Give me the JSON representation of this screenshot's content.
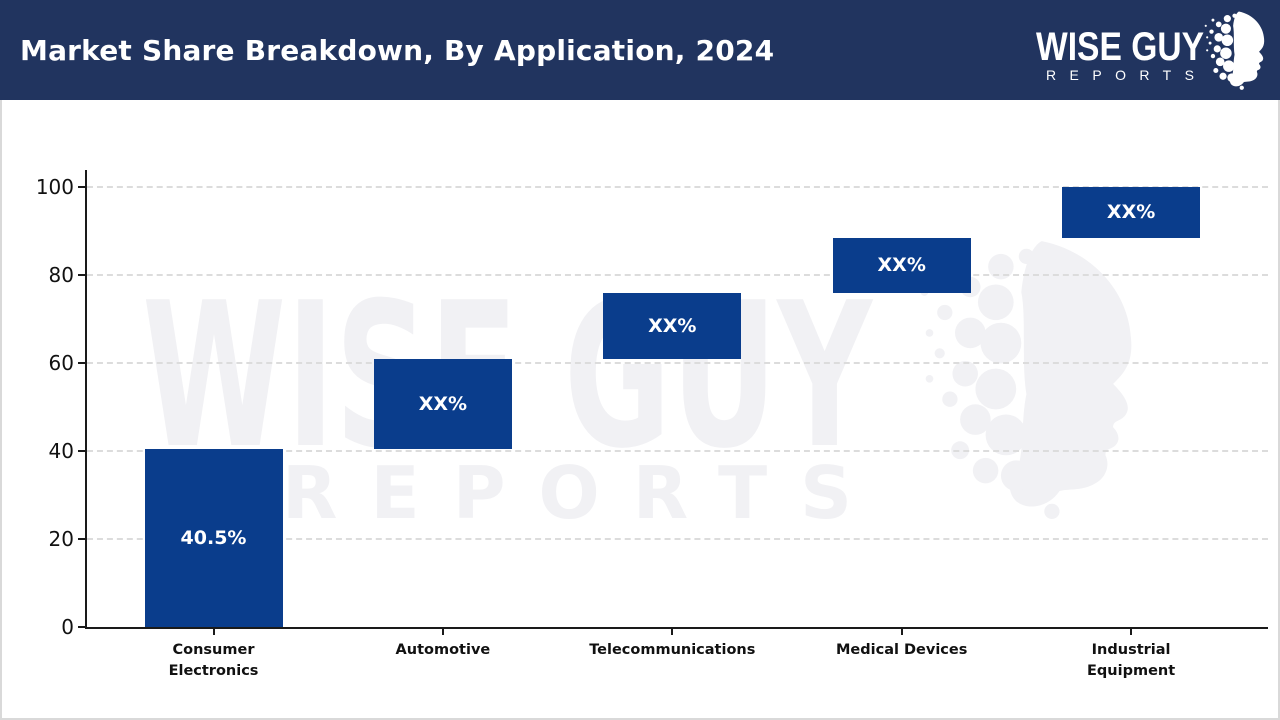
{
  "header": {
    "title": "Market Share Breakdown, By Application, 2024",
    "logo": {
      "wordmark": "WISE GUY",
      "subtext": "REPORTS"
    }
  },
  "watermark": {
    "line1": "WISE GUY",
    "line2": "REPORTS"
  },
  "chart_data": {
    "type": "bar",
    "subtype": "waterfall",
    "title": "Market Share Breakdown, By Application, 2024",
    "categories": [
      "Consumer Electronics",
      "Automotive",
      "Telecommunications",
      "Medical Devices",
      "Industrial Equipment"
    ],
    "segments": [
      {
        "category": "Consumer Electronics",
        "tick_label": "Consumer\nElectronics",
        "start": 0,
        "end": 40.5,
        "label": "40.5%"
      },
      {
        "category": "Automotive",
        "tick_label": "Automotive",
        "start": 40.5,
        "end": 61,
        "label": "XX%"
      },
      {
        "category": "Telecommunications",
        "tick_label": "Telecommunications",
        "start": 61,
        "end": 76,
        "label": "XX%"
      },
      {
        "category": "Medical Devices",
        "tick_label": "Medical Devices",
        "start": 76,
        "end": 88.5,
        "label": "XX%"
      },
      {
        "category": "Industrial Equipment",
        "tick_label": "Industrial\nEquipment",
        "start": 88.5,
        "end": 100,
        "label": "XX%"
      }
    ],
    "yticks": [
      0,
      20,
      40,
      60,
      80,
      100
    ],
    "ylim": [
      0,
      104
    ],
    "xlabel": "",
    "ylabel": "",
    "grid": "horizontal-dashed",
    "legend": "none",
    "colors": {
      "bar": "#0a3d8c",
      "bar_label": "#ffffff",
      "grid": "#dcdcdc",
      "axis": "#1a1a1a",
      "header_bg": "#21345f",
      "watermark": "#f1f1f4"
    }
  }
}
